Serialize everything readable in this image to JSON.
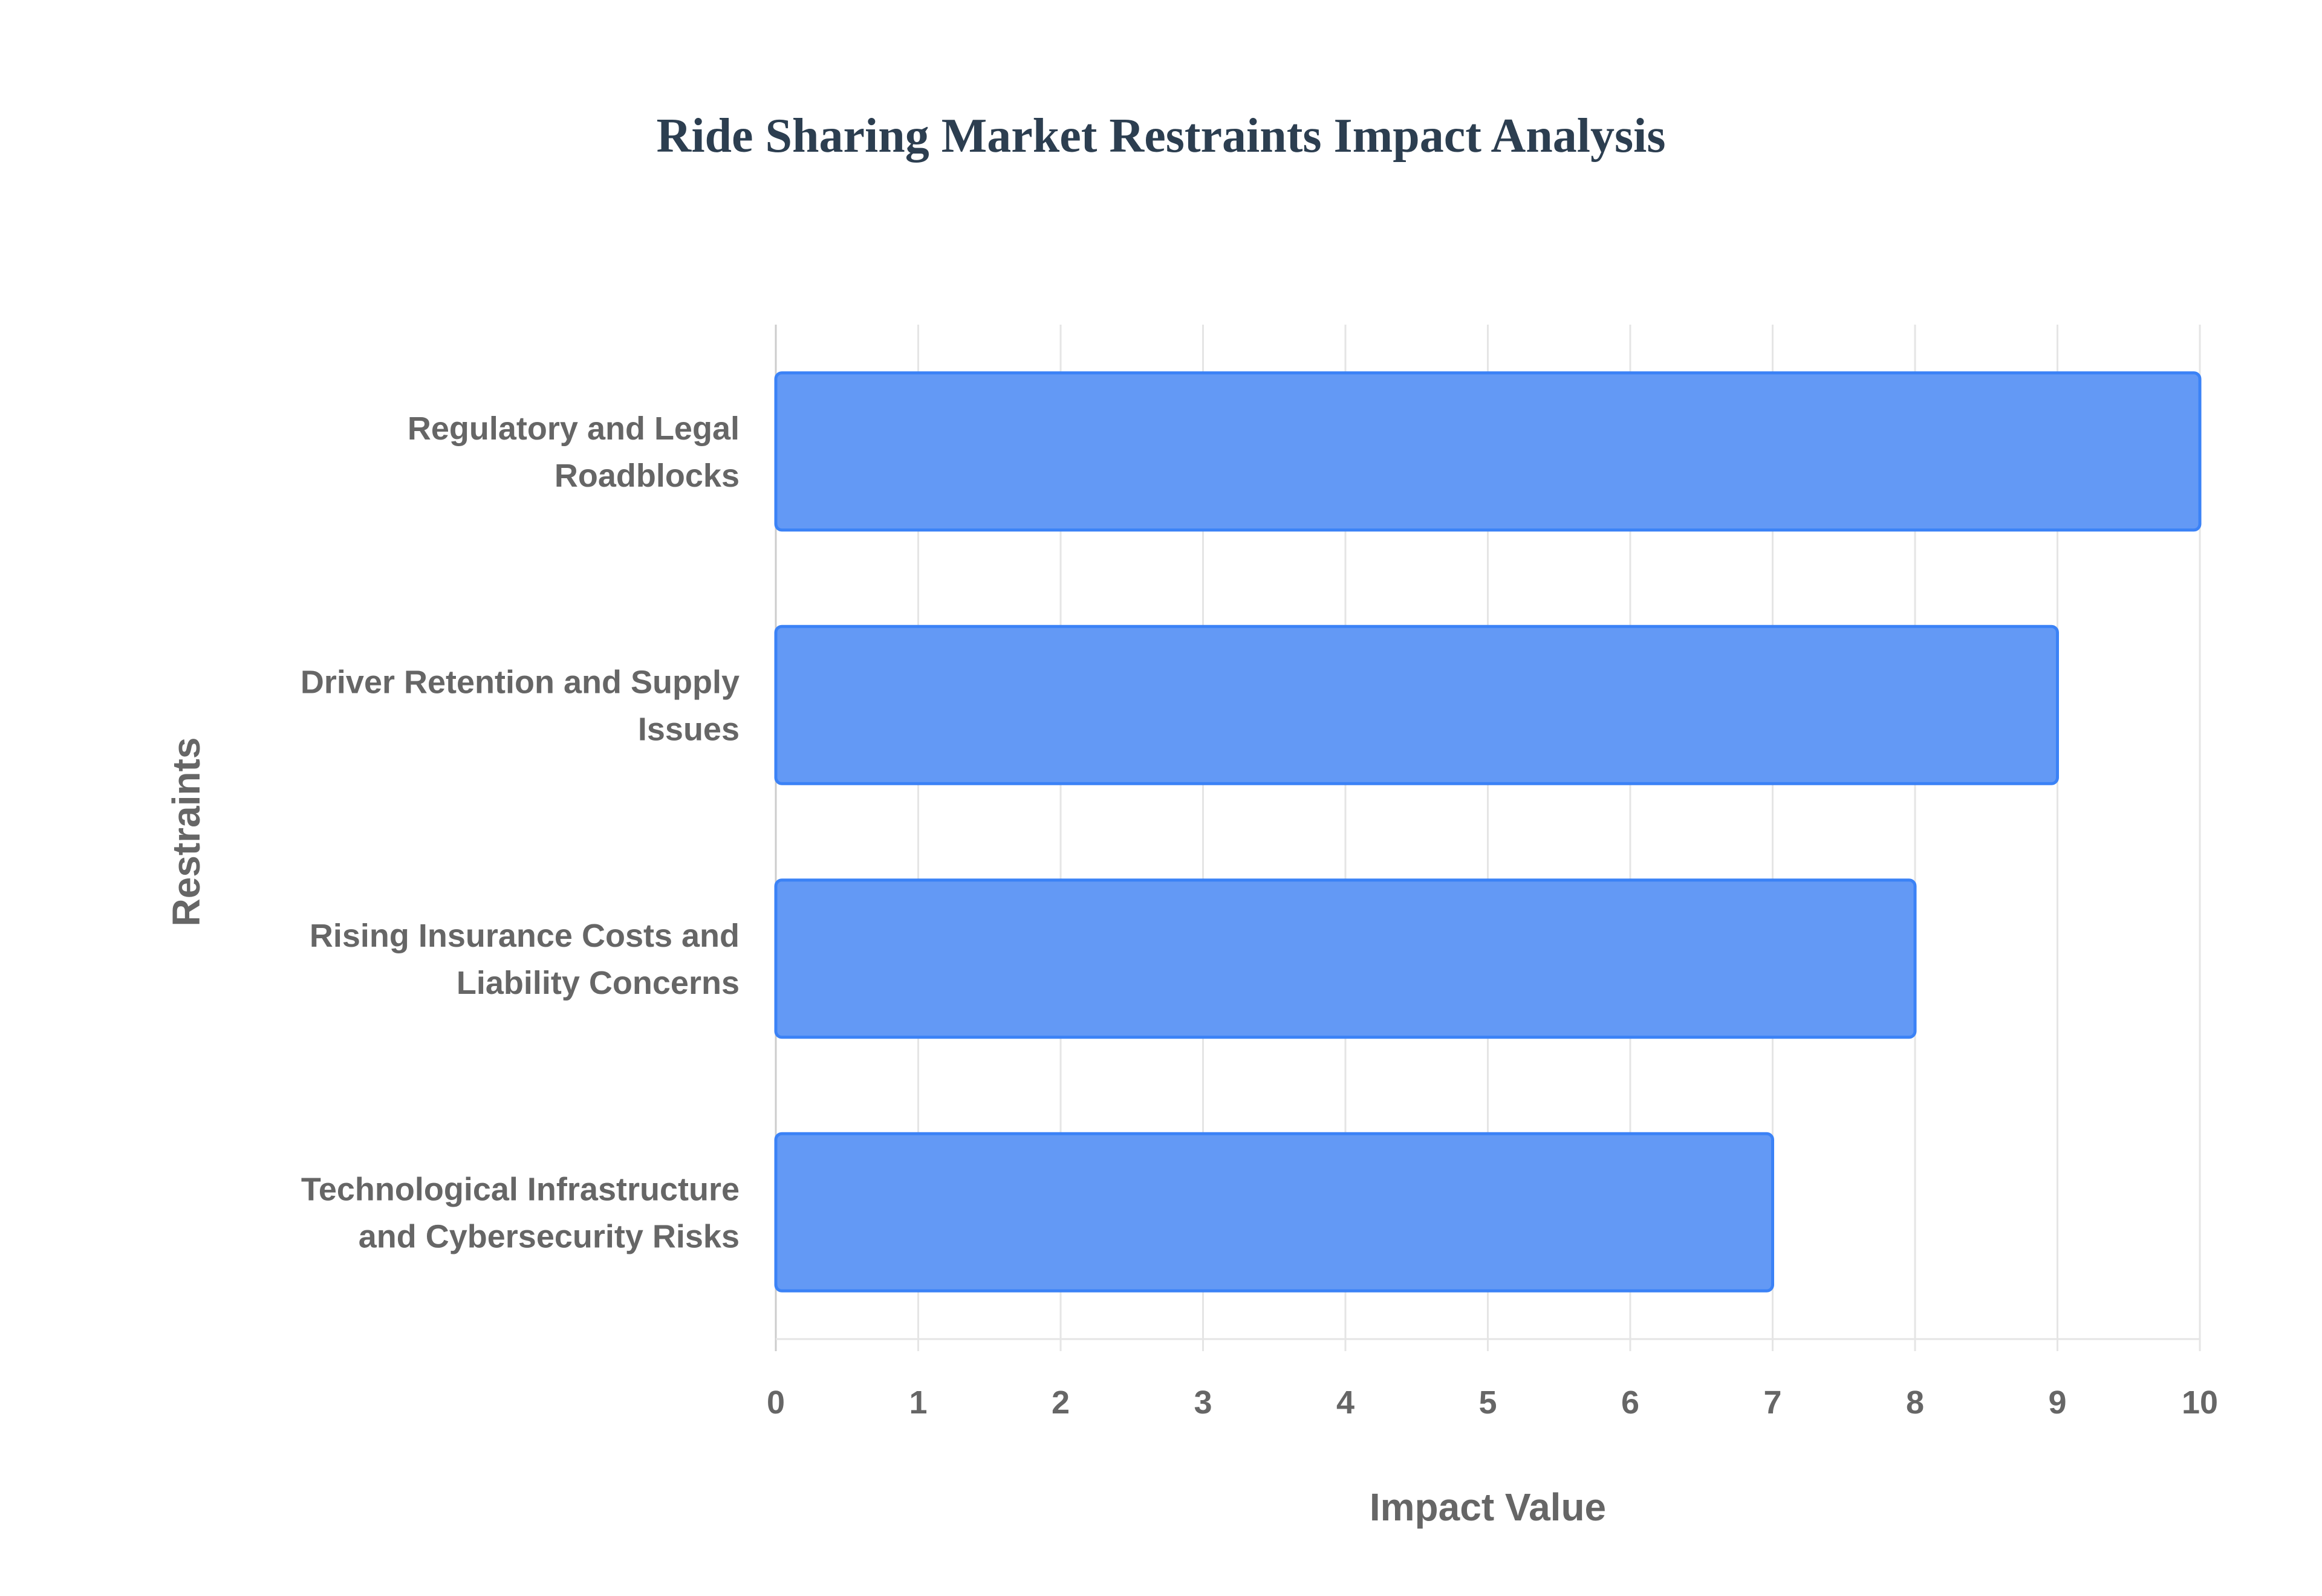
{
  "chart_data": {
    "type": "bar",
    "orientation": "horizontal",
    "title": "Ride Sharing Market Restraints Impact Analysis",
    "xlabel": "Impact Value",
    "ylabel": "Restraints",
    "categories": [
      [
        "Regulatory and Legal",
        "Roadblocks"
      ],
      [
        "Driver Retention and Supply",
        "Issues"
      ],
      [
        "Rising Insurance Costs and",
        "Liability Concerns"
      ],
      [
        "Technological Infrastructure",
        "and Cybersecurity Risks"
      ]
    ],
    "values": [
      10,
      9,
      8,
      7
    ],
    "xlim": [
      0,
      10
    ],
    "xticks": [
      0,
      1,
      2,
      3,
      4,
      5,
      6,
      7,
      8,
      9,
      10
    ],
    "grid": true,
    "legend": "none",
    "colors": {
      "bar_fill": "#6399f5",
      "bar_border": "#3b82f6",
      "title": "#2c3e50",
      "text": "#666666",
      "grid": "#e5e5e5"
    }
  }
}
